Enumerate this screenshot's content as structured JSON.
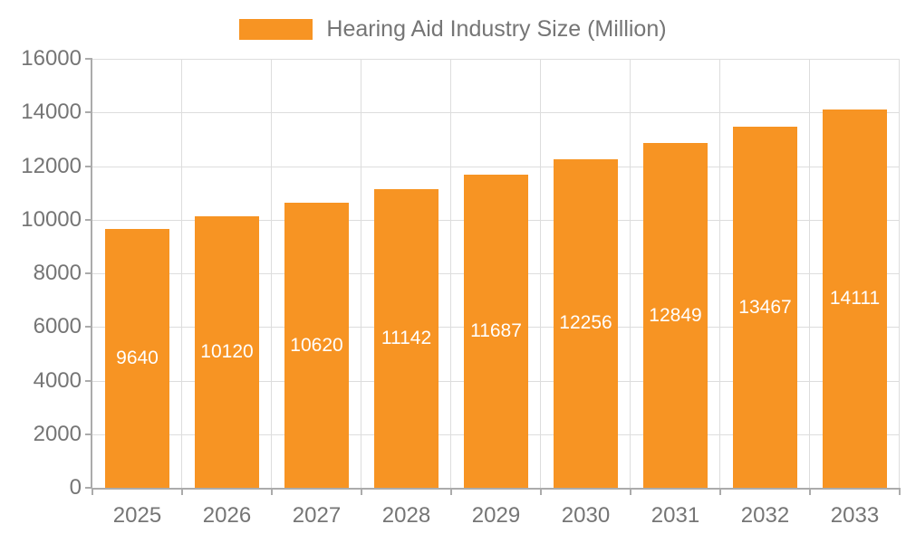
{
  "legend": {
    "label": "Hearing Aid Industry Size (Million)"
  },
  "chart_data": {
    "type": "bar",
    "title": "Hearing Aid Industry Size (Million)",
    "categories": [
      "2025",
      "2026",
      "2027",
      "2028",
      "2029",
      "2030",
      "2031",
      "2032",
      "2033"
    ],
    "values": [
      9640,
      10120,
      10620,
      11142,
      11687,
      12256,
      12849,
      13467,
      14111
    ],
    "bar_labels": [
      "9640",
      "10120",
      "10620",
      "11142",
      "11687",
      "12256",
      "12849",
      "13467",
      "14111"
    ],
    "xlabel": "",
    "ylabel": "",
    "ylim": [
      0,
      16000
    ],
    "yticks": [
      0,
      2000,
      4000,
      6000,
      8000,
      10000,
      12000,
      14000,
      16000
    ],
    "ytick_labels": [
      "0",
      "2000",
      "4000",
      "6000",
      "8000",
      "10000",
      "12000",
      "14000",
      "16000"
    ],
    "grid": "both",
    "legend_position": "top-center",
    "colors": {
      "bar": "#f79423",
      "grid": "#dddddd",
      "axis": "#ababab",
      "text": "#757575",
      "bar_label": "#ffffff",
      "background": "#ffffff"
    }
  }
}
